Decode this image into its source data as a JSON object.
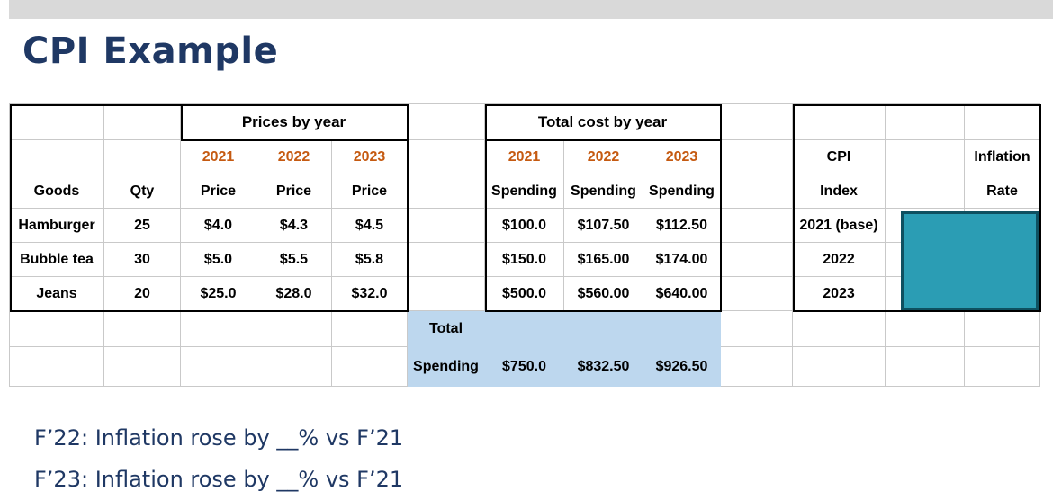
{
  "title": "CPI Example",
  "tables": {
    "prices": {
      "title": "Prices by year",
      "years": [
        "2021",
        "2022",
        "2023"
      ],
      "goods_header": "Goods",
      "qty_header": "Qty",
      "price_header": "Price",
      "rows": [
        {
          "good": "Hamburger",
          "qty": "25",
          "p2021": "$4.0",
          "p2022": "$4.3",
          "p2023": "$4.5"
        },
        {
          "good": "Bubble tea",
          "qty": "30",
          "p2021": "$5.0",
          "p2022": "$5.5",
          "p2023": "$5.8"
        },
        {
          "good": "Jeans",
          "qty": "20",
          "p2021": "$25.0",
          "p2022": "$28.0",
          "p2023": "$32.0"
        }
      ]
    },
    "totals": {
      "title": "Total cost by year",
      "years": [
        "2021",
        "2022",
        "2023"
      ],
      "spending_header": "Spending",
      "rows": [
        {
          "s2021": "$100.0",
          "s2022": "$107.50",
          "s2023": "$112.50"
        },
        {
          "s2021": "$150.0",
          "s2022": "$165.00",
          "s2023": "$174.00"
        },
        {
          "s2021": "$500.0",
          "s2022": "$560.00",
          "s2023": "$640.00"
        }
      ],
      "total_row": {
        "label_line1": "Total",
        "label_line2": "Spending",
        "t2021": "$750.0",
        "t2022": "$832.50",
        "t2023": "$926.50"
      }
    },
    "cpi": {
      "cpi_header": "CPI",
      "index_header": "Index",
      "inflation_header": "Inflation",
      "rate_header": "Rate",
      "year_rows": [
        "2021 (base)",
        "2022",
        "2023"
      ]
    }
  },
  "notes": {
    "line1": "F’22: Inflation rose by __% vs F’21",
    "line2": "F’23: Inflation rose by __% vs F’21"
  },
  "colors": {
    "title_text": "#1f3864",
    "note_text": "#1f3864",
    "year_text": "#c55a11",
    "highlight_fill": "#bdd7ee",
    "answer_box_fill": "#2b9db4",
    "answer_box_border": "#0e5060",
    "top_bar": "#d9d9d9"
  }
}
